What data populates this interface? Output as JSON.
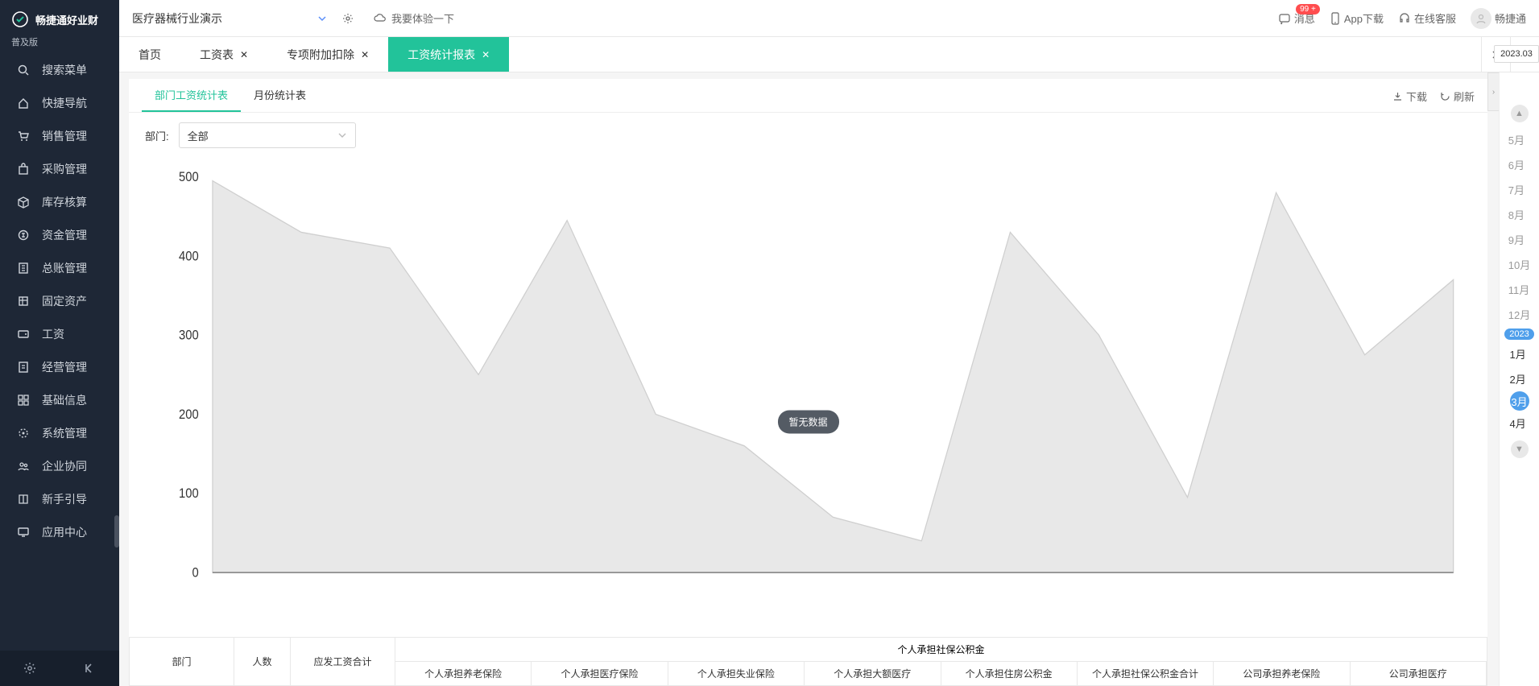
{
  "brand": {
    "name": "畅捷通好业财",
    "edition": "普及版"
  },
  "sidebar": {
    "items": [
      {
        "label": "搜索菜单",
        "icon": "search"
      },
      {
        "label": "快捷导航",
        "icon": "home"
      },
      {
        "label": "销售管理",
        "icon": "cart"
      },
      {
        "label": "采购管理",
        "icon": "bag"
      },
      {
        "label": "库存核算",
        "icon": "box"
      },
      {
        "label": "资金管理",
        "icon": "coin"
      },
      {
        "label": "总账管理",
        "icon": "ledger"
      },
      {
        "label": "固定资产",
        "icon": "asset"
      },
      {
        "label": "工资",
        "icon": "wallet"
      },
      {
        "label": "经营管理",
        "icon": "doc"
      },
      {
        "label": "基础信息",
        "icon": "grid"
      },
      {
        "label": "系统管理",
        "icon": "gear-dash"
      },
      {
        "label": "企业协同",
        "icon": "team"
      },
      {
        "label": "新手引导",
        "icon": "book"
      },
      {
        "label": "应用中心",
        "icon": "device"
      }
    ]
  },
  "header": {
    "org": "医疗器械行业演示",
    "try_text": "我要体验一下",
    "actions": {
      "message": "消息",
      "message_badge": "99 +",
      "app": "App下载",
      "service": "在线客服",
      "user": "畅捷通"
    }
  },
  "tabs": [
    {
      "label": "首页",
      "closable": false
    },
    {
      "label": "工资表",
      "closable": true
    },
    {
      "label": "专项附加扣除",
      "closable": true
    },
    {
      "label": "工资统计报表",
      "closable": true,
      "active": true
    }
  ],
  "subtabs": {
    "items": [
      {
        "label": "部门工资统计表",
        "active": true
      },
      {
        "label": "月份统计表"
      }
    ],
    "actions": {
      "download": "下载",
      "refresh": "刷新"
    }
  },
  "filter": {
    "label": "部门:",
    "value": "全部"
  },
  "chart": {
    "type": "area",
    "no_data_label": "暂无数据",
    "background_color": "#ffffff",
    "fill_color": "#e8e8e8",
    "stroke_color": "#cfcfcf",
    "axis_color": "#777777",
    "label_color": "#333333",
    "label_fontsize": 12,
    "ylim": [
      0,
      500
    ],
    "ytick_step": 100,
    "ylabels": [
      "0",
      "100",
      "200",
      "300",
      "400",
      "500"
    ],
    "values": [
      495,
      430,
      410,
      250,
      445,
      200,
      160,
      70,
      40,
      430,
      300,
      95,
      480,
      275,
      370
    ]
  },
  "table": {
    "fixed_cols": [
      "部门",
      "人数",
      "应发工资合计"
    ],
    "group_title": "个人承担社保公积金",
    "group_cols": [
      "个人承担养老保险",
      "个人承担医疗保险",
      "个人承担失业保险",
      "个人承担大额医疗",
      "个人承担住房公积金",
      "个人承担社保公积金合计",
      "公司承担养老保险",
      "公司承担医疗"
    ]
  },
  "month_rail": {
    "period": "2023.03",
    "prev_months": [
      "5月",
      "6月",
      "7月",
      "8月",
      "9月",
      "10月",
      "11月",
      "12月"
    ],
    "year_badge": "2023",
    "cur_months": [
      "1月",
      "2月",
      "3月",
      "4月"
    ],
    "active": "3月"
  },
  "colors": {
    "sidebar_bg": "#1e2736",
    "accent_green": "#22c39a",
    "accent_blue": "#4f9feb"
  }
}
